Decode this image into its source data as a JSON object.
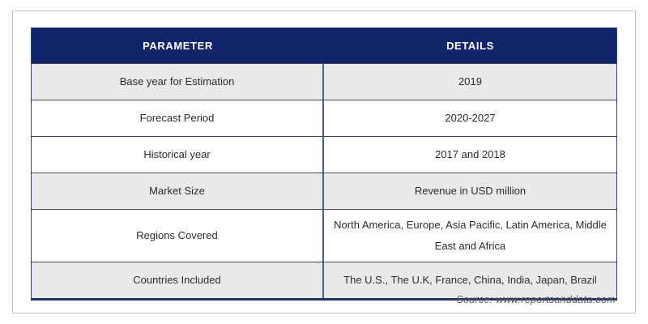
{
  "chart_data": {
    "type": "table",
    "columns": [
      "PARAMETER",
      "DETAILS"
    ],
    "rows": [
      [
        "Base year for Estimation",
        "2019"
      ],
      [
        "Forecast Period",
        "2020-2027"
      ],
      [
        "Historical year",
        "2017 and 2018"
      ],
      [
        "Market Size",
        "Revenue in USD million"
      ],
      [
        "Regions Covered",
        "North America, Europe, Asia Pacific, Latin America, Middle East and Africa"
      ],
      [
        "Countries Included",
        "The U.S., The  U.K, France, China, India, Japan, Brazil"
      ]
    ],
    "source": "Source: www.reportsanddata.com",
    "layout": "two equal columns, centered text, alternating shaded rows"
  },
  "colors": {
    "header_bg": "#12256a",
    "header_text": "#ffffff",
    "row_shaded": "#e9e9e9",
    "row_plain": "#ffffff",
    "row_border": "#42485a",
    "column_divider": "#4e5f8d",
    "table_bottom_border": "#253768",
    "frame_border": "#bcbcbc",
    "body_text": "#2d2d2d",
    "source_text": "#5a5a5a"
  }
}
